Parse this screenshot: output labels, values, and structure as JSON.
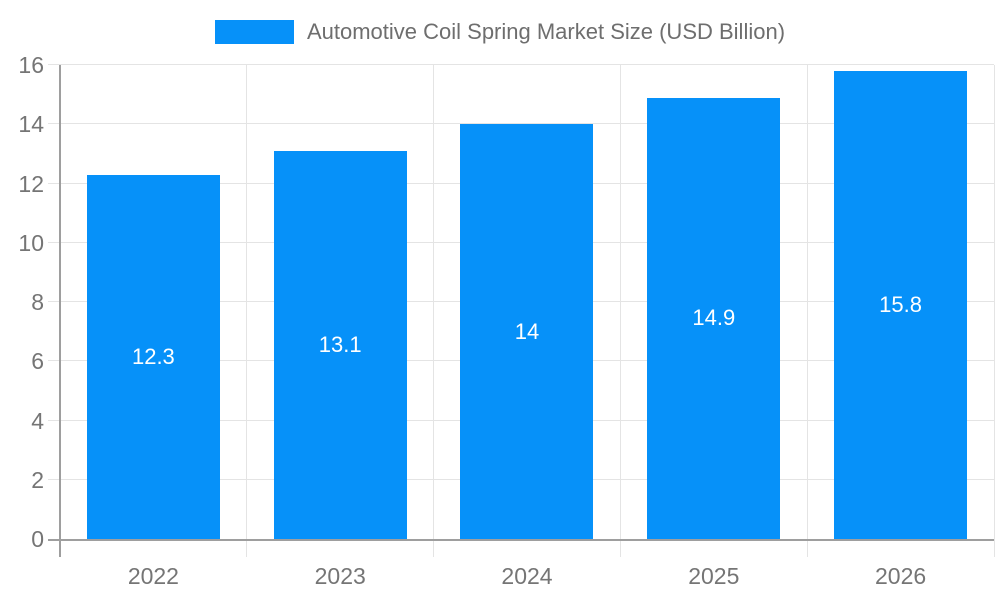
{
  "legend": {
    "label": "Automotive Coil Spring Market Size (USD Billion)"
  },
  "colors": {
    "bar": "#0691F9",
    "axis": "#9E9E9E",
    "gridline": "#E4E4E4",
    "tick_label": "#757575",
    "value_label": "#FFFFFF",
    "legend_text": "#6E6E6E",
    "background": "#FFFFFF"
  },
  "chart_data": {
    "type": "bar",
    "title": "Automotive Coil Spring Market Size (USD Billion)",
    "categories": [
      "2022",
      "2023",
      "2024",
      "2025",
      "2026"
    ],
    "values": [
      12.3,
      13.1,
      14,
      14.9,
      15.8
    ],
    "value_labels": [
      "12.3",
      "13.1",
      "14",
      "14.9",
      "15.8"
    ],
    "xlabel": "",
    "ylabel": "",
    "ylim": [
      0,
      16
    ],
    "yticks": [
      0,
      2,
      4,
      6,
      8,
      10,
      12,
      14,
      16
    ],
    "grid": true,
    "legend_position": "top",
    "value_label_position": "center"
  }
}
